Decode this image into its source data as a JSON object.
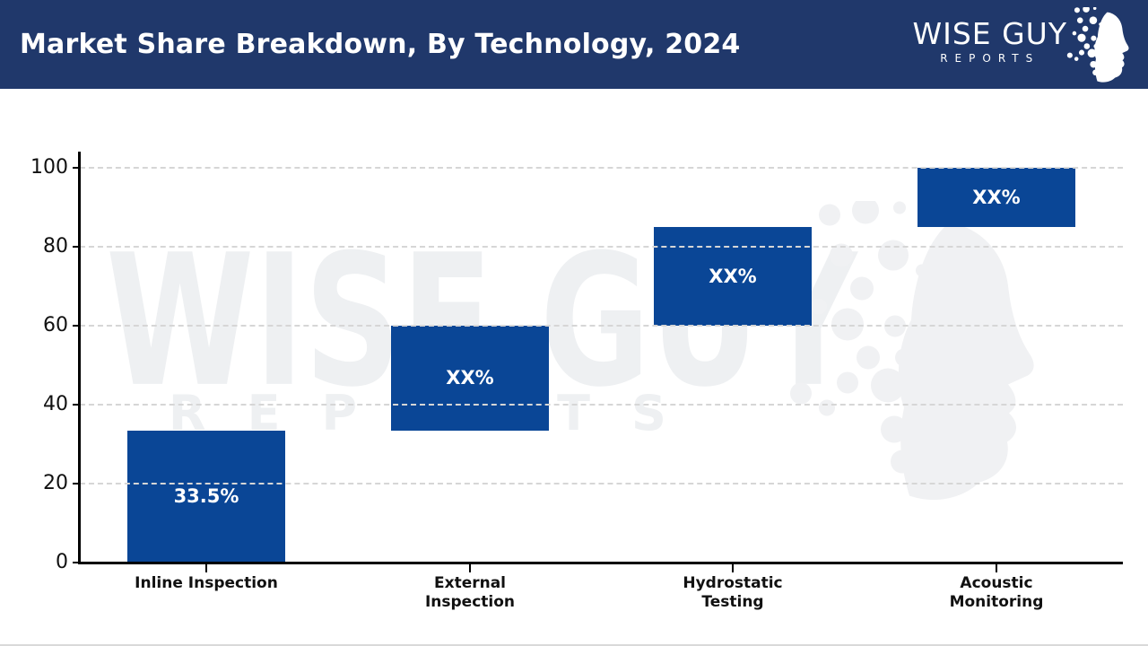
{
  "header": {
    "title": "Market Share Breakdown, By Technology, 2024",
    "logo": {
      "line1": "WISE GUY",
      "line2": "REPORTS"
    }
  },
  "watermark": {
    "line1": "WISE GUY",
    "line2": "REPORTS"
  },
  "chart_data": {
    "type": "bar",
    "subtype": "waterfall",
    "title": "Market Share Breakdown, By Technology, 2024",
    "categories": [
      "Inline Inspection",
      "External\nInspection",
      "Hydrostatic\nTesting",
      "Acoustic\nMonitoring"
    ],
    "segments": [
      {
        "category": "Inline Inspection",
        "start": 0,
        "end": 33.5,
        "label": "33.5%"
      },
      {
        "category": "External Inspection",
        "start": 33.5,
        "end": 60,
        "label": "XX%"
      },
      {
        "category": "Hydrostatic Testing",
        "start": 60,
        "end": 85,
        "label": "XX%"
      },
      {
        "category": "Acoustic Monitoring",
        "start": 85,
        "end": 100,
        "label": "XX%"
      }
    ],
    "ylim": [
      0,
      100
    ],
    "yticks": [
      0,
      20,
      40,
      60,
      80,
      100
    ],
    "xlabel": "",
    "ylabel": "",
    "grid": "horizontal-dashed",
    "legend": "none",
    "bar_color": "#0a4696",
    "bar_label_color": "#ffffff",
    "header_bg_color": "#20386b",
    "grid_color": "#d6d6d6",
    "watermark_color": "#eef0f2"
  }
}
